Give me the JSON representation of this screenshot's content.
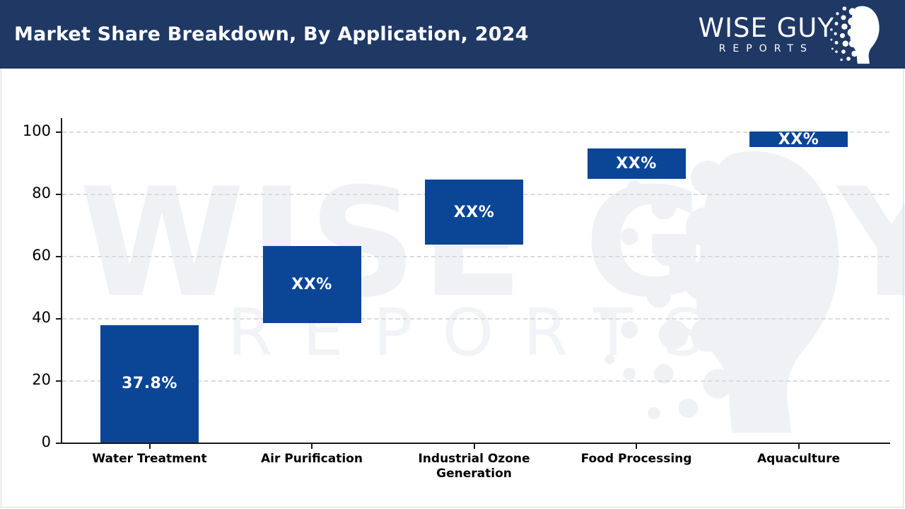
{
  "header": {
    "title": "Market Share Breakdown, By Application, 2024",
    "logo": {
      "line1": "WISE GUY",
      "line2": "REPORTS"
    }
  },
  "watermark": {
    "line1": "WISE GUY",
    "line2": "REPORTS"
  },
  "colors": {
    "header_bg": "#1f3864",
    "bar": "#0b4596",
    "bar_label": "#ffffff",
    "gridline": "#dadada",
    "axis": "#1a1a1a",
    "watermark": "#eff1f4"
  },
  "chart_data": {
    "type": "bar",
    "subtype": "waterfall",
    "title": "Market Share Breakdown, By Application, 2024",
    "xlabel": "",
    "ylabel": "",
    "grid": "dashed-horizontal",
    "legend": "none",
    "ylim": [
      0,
      105
    ],
    "yticks": [
      0,
      20,
      40,
      60,
      80,
      100
    ],
    "categories": [
      "Water Treatment",
      "Air Purification",
      "Industrial Ozone Generation",
      "Food Processing",
      "Aquaculture"
    ],
    "segments": [
      {
        "category": "Water Treatment",
        "start": 0,
        "end": 37.8,
        "label": "37.8%"
      },
      {
        "category": "Air Purification",
        "start": 38.3,
        "end": 63.1,
        "label": "XX%"
      },
      {
        "category": "Industrial Ozone Generation",
        "start": 63.6,
        "end": 84.5,
        "label": "XX%"
      },
      {
        "category": "Food Processing",
        "start": 84.8,
        "end": 94.6,
        "label": "XX%"
      },
      {
        "category": "Aquaculture",
        "start": 95.0,
        "end": 100,
        "label": "XX%"
      }
    ],
    "bar_color": "#0b4596",
    "value_label_color": "#ffffff"
  }
}
